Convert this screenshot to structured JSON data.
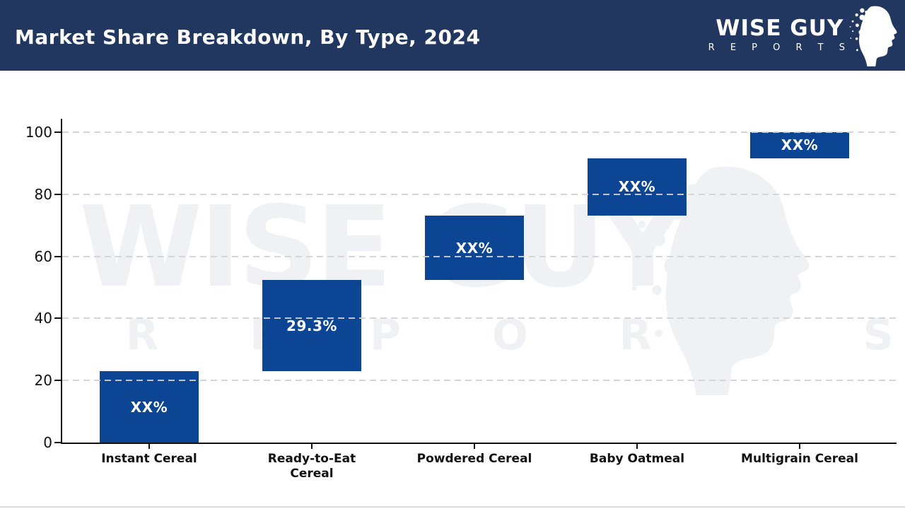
{
  "header": {
    "title": "Market Share Breakdown, By Type, 2024",
    "logo": {
      "primary": "WISE GUY",
      "secondary": "R E P O R T S"
    }
  },
  "watermark": {
    "primary": "WISE GUY",
    "secondary": "R E P O R T S"
  },
  "chart_data": {
    "type": "bar",
    "subtype": "floating-segment-waterfall",
    "title": "Market Share Breakdown, By Type, 2024",
    "categories": [
      "Instant Cereal",
      "Ready-to-Eat Cereal",
      "Powdered Cereal",
      "Baby Oatmeal",
      "Multigrain Cereal"
    ],
    "category_lines": [
      [
        "Instant Cereal"
      ],
      [
        "Ready-to-Eat",
        "Cereal"
      ],
      [
        "Powdered Cereal"
      ],
      [
        "Baby Oatmeal"
      ],
      [
        "Multigrain Cereal"
      ]
    ],
    "segments": [
      {
        "category": "Instant Cereal",
        "start": 0,
        "end": 23,
        "label": "XX%"
      },
      {
        "category": "Ready-to-Eat Cereal",
        "start": 23,
        "end": 52.3,
        "label": "29.3%"
      },
      {
        "category": "Powdered Cereal",
        "start": 52.3,
        "end": 73.2,
        "label": "XX%"
      },
      {
        "category": "Baby Oatmeal",
        "start": 73.2,
        "end": 91.6,
        "label": "XX%"
      },
      {
        "category": "Multigrain Cereal",
        "start": 91.6,
        "end": 100,
        "label": "XX%"
      }
    ],
    "xlabel": "",
    "ylabel": "",
    "ylim": [
      0,
      104
    ],
    "yticks": [
      0,
      20,
      40,
      60,
      80,
      100
    ],
    "grid": "horizontal dashed gridlines drawn over bars",
    "legend": "none"
  },
  "colors": {
    "header_bg": "#22375F",
    "title_text": "#FFFFFF",
    "bar": "#0B4594",
    "bar_label": "#FFFFFF",
    "grid": "#D2D2D2",
    "axis": "#111111",
    "tick_label": "#111111",
    "watermark": "#F0F1F4",
    "bottom_rule": "#DCDCDC"
  }
}
